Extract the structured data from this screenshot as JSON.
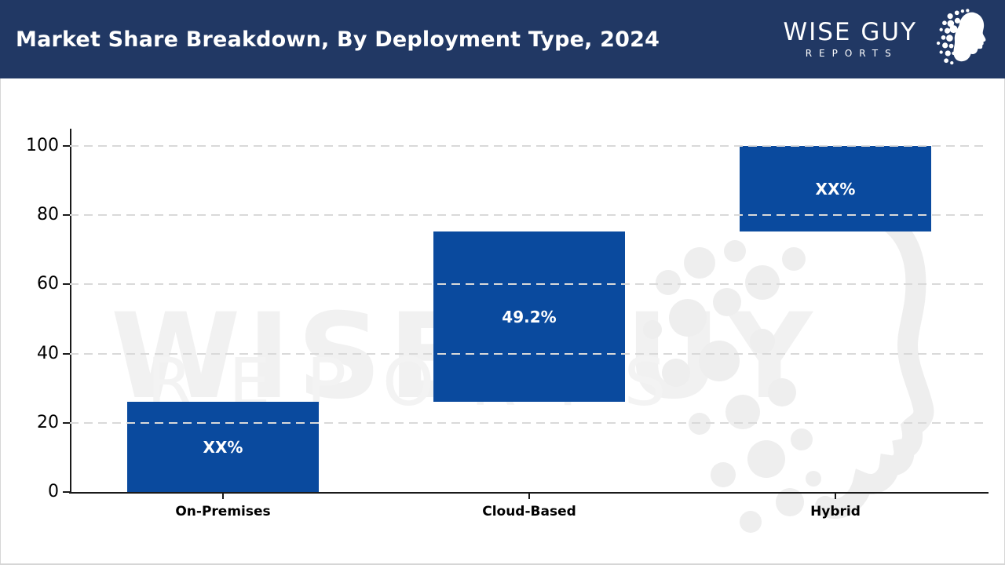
{
  "header": {
    "title": "Market Share Breakdown, By Deployment Type, 2024",
    "bg_color": "#213864",
    "logo": {
      "line1": "WISE GUY",
      "line2": "REPORTS"
    }
  },
  "watermark": {
    "line1": "WISE GUY",
    "line2": "REPORTS"
  },
  "chart_data": {
    "type": "bar",
    "variant": "waterfall-stacked-percentage",
    "title": "Market Share Breakdown, By Deployment Type, 2024",
    "categories": [
      "On-Premises",
      "Cloud-Based",
      "Hybrid"
    ],
    "segments": [
      {
        "category": "On-Premises",
        "start": 0,
        "end": 26,
        "value": 26,
        "label": "XX%"
      },
      {
        "category": "Cloud-Based",
        "start": 26,
        "end": 75.2,
        "value": 49.2,
        "label": "49.2%"
      },
      {
        "category": "Hybrid",
        "start": 75.2,
        "end": 100,
        "value": 24.8,
        "label": "XX%"
      }
    ],
    "ylim": [
      0,
      100
    ],
    "yticks": [
      0,
      20,
      40,
      60,
      80,
      100
    ],
    "xlabel": "",
    "ylabel": "",
    "legend": false,
    "grid": "horizontal-dashed",
    "bar_color": "#0a4a9e",
    "grid_color": "#d9d9d9"
  },
  "colors": {
    "header_bg": "#213864",
    "bar_blue": "#0a4a9e",
    "axis": "#1a1a1a",
    "watermark_gray": "#f1f1f1",
    "border_gray": "#d6d6d6"
  }
}
